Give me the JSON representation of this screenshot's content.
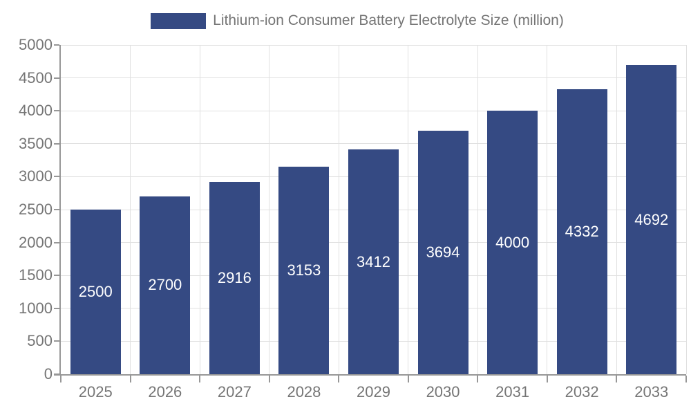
{
  "legend": {
    "label": "Lithium-ion Consumer Battery Electrolyte Size (million)"
  },
  "chart_data": {
    "type": "bar",
    "title": "Lithium-ion Consumer Battery Electrolyte Size (million)",
    "series_name": "Lithium-ion Consumer Battery Electrolyte Size (million)",
    "categories": [
      "2025",
      "2026",
      "2027",
      "2028",
      "2029",
      "2030",
      "2031",
      "2032",
      "2033"
    ],
    "values": [
      2500,
      2700,
      2916,
      3153,
      3412,
      3694,
      4000,
      4332,
      4692
    ],
    "xlabel": "",
    "ylabel": "",
    "ylim": [
      0,
      5000
    ],
    "y_ticks": [
      0,
      500,
      1000,
      1500,
      2000,
      2500,
      3000,
      3500,
      4000,
      4500,
      5000
    ],
    "bar_labels_visible": true,
    "grid": true,
    "legend_position": "top",
    "colors": {
      "bar": "#354a83",
      "bar_label": "#ffffff",
      "axis_line": "#979797",
      "gridline": "#e0e0e0",
      "tick_text": "#757575",
      "legend_text": "#757575",
      "background": "#ffffff"
    }
  }
}
